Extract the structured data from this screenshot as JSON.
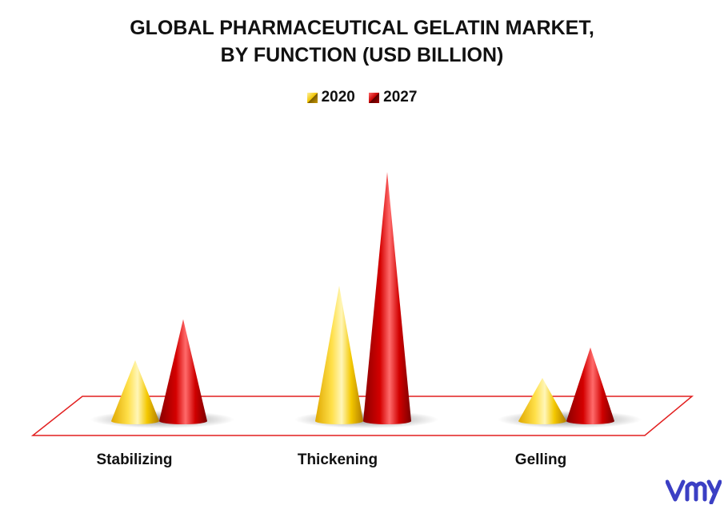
{
  "chart_data": {
    "type": "bar",
    "title_lines": [
      "GLOBAL PHARMACEUTICAL GELATIN MARKET,",
      "BY FUNCTION (USD BILLION)"
    ],
    "categories": [
      "Stabilizing",
      "Thickening",
      "Gelling"
    ],
    "series": [
      {
        "name": "2020",
        "values": [
          0.82,
          1.82,
          0.58
        ]
      },
      {
        "name": "2027",
        "values": [
          1.37,
          3.35,
          0.99
        ]
      }
    ],
    "ylim": [
      0,
      3.6
    ],
    "legend_position": "top-center",
    "grid": false,
    "colors": {
      "2020": "#f2c400",
      "2027": "#c70000",
      "floor_border": "#e21f1f"
    }
  },
  "logo": {
    "icon": "vmr-logo-icon",
    "color": "#3b3fc4"
  }
}
